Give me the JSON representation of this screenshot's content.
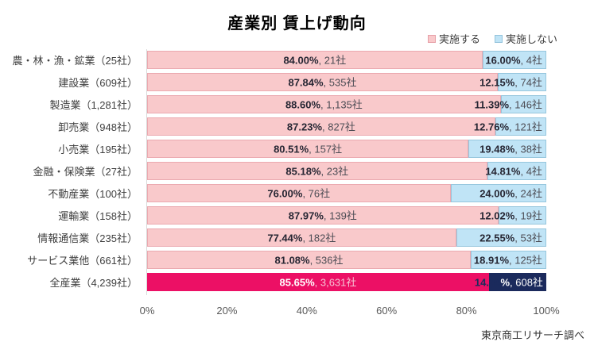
{
  "title": "産業別 賃上げ動向",
  "source": "東京商工リサーチ調べ",
  "legend": [
    {
      "name": "implement",
      "label": "実施する",
      "fill": "#f9c9cb",
      "border": "#e6a0a8"
    },
    {
      "name": "decline",
      "label": "実施しない",
      "fill": "#c0e4f6",
      "border": "#94c3db"
    }
  ],
  "colors": {
    "implement_fill": "#f9c9cb",
    "implement_border": "#eba9b0",
    "decline_fill": "#c0e4f6",
    "decline_border": "#96c6dd",
    "highlight_implement_fill": "#ec1065",
    "highlight_decline_fill": "#1b2a5c",
    "pct_text": "#262633",
    "count_text": "#4d4d55",
    "highlight_pct_text": "#ffffff",
    "highlight_count_text": "#f6c2d4",
    "highlight_decline_overflow_text": "#1b2a5c",
    "category_text": "#404040",
    "axis_text": "#595959",
    "axis_line": "#d9d9d9"
  },
  "chart_data": {
    "type": "bar",
    "orientation": "horizontal",
    "stacked": true,
    "title": "産業別 賃上げ動向",
    "xlim": [
      0,
      100
    ],
    "x_ticks": [
      "0%",
      "20%",
      "40%",
      "60%",
      "80%",
      "100%"
    ],
    "grid": false,
    "legend_position": "top-right",
    "series_names": [
      "実施する",
      "実施しない"
    ],
    "rows": [
      {
        "category": "農・林・漁・鉱業（25社）",
        "highlight": false,
        "implement": {
          "value": 84.0,
          "pct_label": "84.00%",
          "count_label": "21社"
        },
        "decline": {
          "value": 16.0,
          "pct_label": "16.00%",
          "count_label": "4社"
        }
      },
      {
        "category": "建設業（609社）",
        "highlight": false,
        "implement": {
          "value": 87.84,
          "pct_label": "87.84%",
          "count_label": "535社"
        },
        "decline": {
          "value": 12.15,
          "pct_label": "12.15%",
          "count_label": "74社"
        }
      },
      {
        "category": "製造業（1,281社）",
        "highlight": false,
        "implement": {
          "value": 88.6,
          "pct_label": "88.60%",
          "count_label": "1,135社"
        },
        "decline": {
          "value": 11.39,
          "pct_label": "11.39%",
          "count_label": "146社"
        }
      },
      {
        "category": "卸売業（948社）",
        "highlight": false,
        "implement": {
          "value": 87.23,
          "pct_label": "87.23%",
          "count_label": "827社"
        },
        "decline": {
          "value": 12.76,
          "pct_label": "12.76%",
          "count_label": "121社"
        }
      },
      {
        "category": "小売業（195社）",
        "highlight": false,
        "implement": {
          "value": 80.51,
          "pct_label": "80.51%",
          "count_label": "157社"
        },
        "decline": {
          "value": 19.48,
          "pct_label": "19.48%",
          "count_label": "38社"
        }
      },
      {
        "category": "金融・保険業（27社）",
        "highlight": false,
        "implement": {
          "value": 85.18,
          "pct_label": "85.18%",
          "count_label": "23社"
        },
        "decline": {
          "value": 14.81,
          "pct_label": "14.81%",
          "count_label": "4社"
        }
      },
      {
        "category": "不動産業（100社）",
        "highlight": false,
        "implement": {
          "value": 76.0,
          "pct_label": "76.00%",
          "count_label": "76社"
        },
        "decline": {
          "value": 24.0,
          "pct_label": "24.00%",
          "count_label": "24社"
        }
      },
      {
        "category": "運輸業（158社）",
        "highlight": false,
        "implement": {
          "value": 87.97,
          "pct_label": "87.97%",
          "count_label": "139社"
        },
        "decline": {
          "value": 12.02,
          "pct_label": "12.02%",
          "count_label": "19社"
        }
      },
      {
        "category": "情報通信業（235社）",
        "highlight": false,
        "implement": {
          "value": 77.44,
          "pct_label": "77.44%",
          "count_label": "182社"
        },
        "decline": {
          "value": 22.55,
          "pct_label": "22.55%",
          "count_label": "53社"
        }
      },
      {
        "category": "サービス業他（661社）",
        "highlight": false,
        "implement": {
          "value": 81.08,
          "pct_label": "81.08%",
          "count_label": "536社"
        },
        "decline": {
          "value": 18.91,
          "pct_label": "18.91%",
          "count_label": "125社"
        }
      },
      {
        "category": "全産業（4,239社）",
        "highlight": true,
        "implement": {
          "value": 85.65,
          "pct_label": "85.65%",
          "count_label": "3,631社"
        },
        "decline": {
          "value": 14.34,
          "pct_label": "14.34%",
          "count_label": "608社"
        }
      }
    ]
  }
}
